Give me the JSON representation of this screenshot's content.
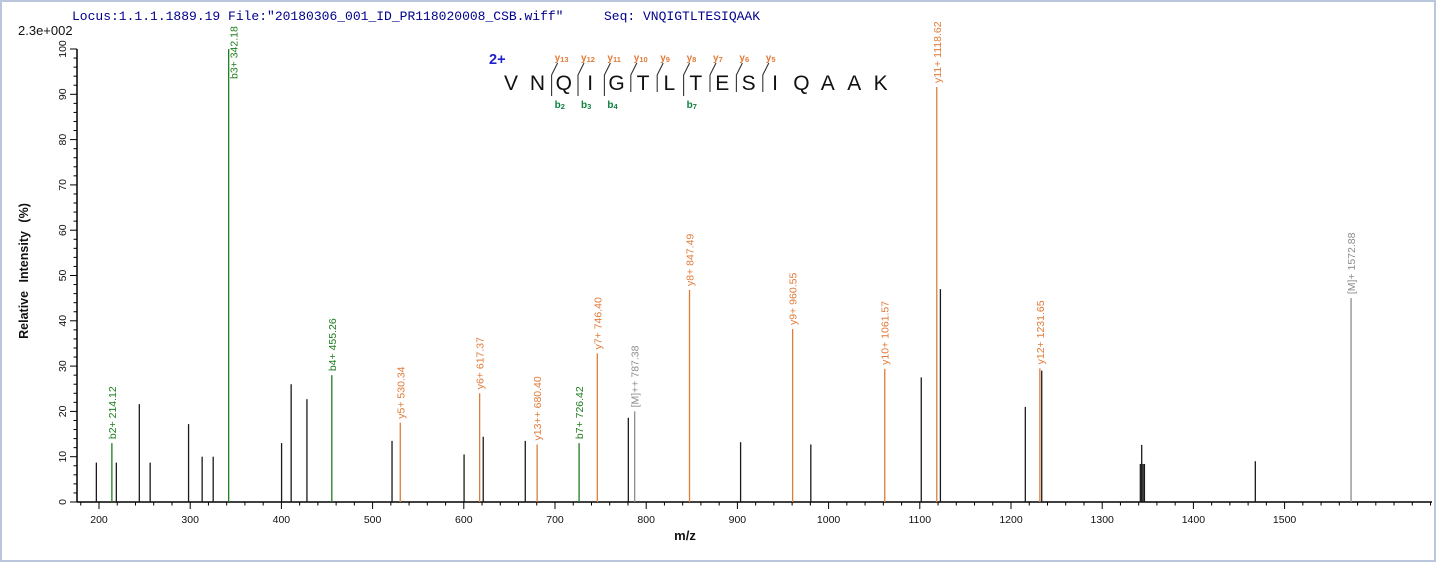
{
  "header": {
    "locus_file": "Locus:1.1.1.1889.19 File:\"20180306_001_ID_PR118020008_CSB.wiff\"",
    "seq": "Seq: VNQIGTLTESIQAAK"
  },
  "colors": {
    "b_ion": "#1e7d1e",
    "y_ion": "#e07b39",
    "precursor": "#8c8c8c",
    "peak": "#1a1a1a",
    "header_text": "#00008b",
    "charge_label": "#2020cc",
    "annotation_b": "#0e8040",
    "annotation_mark": "#333333"
  },
  "peptide": {
    "charge_label": "2+",
    "residues": [
      "V",
      "N",
      "Q",
      "I",
      "G",
      "T",
      "L",
      "T",
      "E",
      "S",
      "I",
      "Q",
      "A",
      "A",
      "K"
    ],
    "marks": [
      {
        "gap_after": 1,
        "y_label": "y13",
        "b_label": "b2"
      },
      {
        "gap_after": 2,
        "y_label": "y12",
        "b_label": "b3"
      },
      {
        "gap_after": 3,
        "y_label": "y11",
        "b_label": "b4"
      },
      {
        "gap_after": 4,
        "y_label": "y10"
      },
      {
        "gap_after": 5,
        "y_label": "y9"
      },
      {
        "gap_after": 6,
        "y_label": "y8",
        "b_label": "b7"
      },
      {
        "gap_after": 7,
        "y_label": "y7"
      },
      {
        "gap_after": 8,
        "y_label": "y6"
      },
      {
        "gap_after": 9,
        "y_label": "y5"
      }
    ]
  },
  "chart_data": {
    "type": "bar",
    "title": "",
    "xlabel": "m/z",
    "ylabel": "Relative Intensity (%)",
    "y_scale_note": "2.3e+002",
    "xlim": [
      176,
      1662
    ],
    "ylim": [
      0,
      100
    ],
    "x_major_ticks": [
      200,
      300,
      400,
      500,
      600,
      700,
      800,
      900,
      1000,
      1100,
      1200,
      1300,
      1400,
      1500
    ],
    "x_minor_tick_step": 20,
    "y_major_ticks": [
      0,
      10,
      20,
      30,
      40,
      50,
      60,
      70,
      80,
      90,
      100
    ],
    "y_minor_tick_step": 2,
    "grid": false,
    "legend": "none",
    "peaks": [
      {
        "mz": 197.1,
        "intensity": 8.7
      },
      {
        "mz": 214.12,
        "intensity": 13.0,
        "ion": "b",
        "label": "b2+ 214.12"
      },
      {
        "mz": 219.0,
        "intensity": 8.7
      },
      {
        "mz": 244.2,
        "intensity": 21.6
      },
      {
        "mz": 256.1,
        "intensity": 8.7
      },
      {
        "mz": 298.2,
        "intensity": 17.2
      },
      {
        "mz": 313.1,
        "intensity": 10.0
      },
      {
        "mz": 325.2,
        "intensity": 10.0
      },
      {
        "mz": 342.18,
        "intensity": 100.0,
        "ion": "b",
        "label": "b3+ 342.18",
        "label_dx": 9,
        "label_bottom": 77
      },
      {
        "mz": 400.2,
        "intensity": 13.0
      },
      {
        "mz": 410.7,
        "intensity": 26.0
      },
      {
        "mz": 428.0,
        "intensity": 22.7
      },
      {
        "mz": 455.26,
        "intensity": 28.0,
        "ion": "b",
        "label": "b4+ 455.26"
      },
      {
        "mz": 521.3,
        "intensity": 13.5
      },
      {
        "mz": 530.34,
        "intensity": 17.5,
        "ion": "y",
        "label": "y5+ 530.34"
      },
      {
        "mz": 600.3,
        "intensity": 10.5
      },
      {
        "mz": 617.37,
        "intensity": 24.0,
        "ion": "y",
        "label": "y6+ 617.37"
      },
      {
        "mz": 621.3,
        "intensity": 14.4
      },
      {
        "mz": 667.4,
        "intensity": 13.5
      },
      {
        "mz": 680.4,
        "intensity": 12.7,
        "ion": "y",
        "label": "y13++ 680.40"
      },
      {
        "mz": 726.42,
        "intensity": 13.0,
        "ion": "b",
        "label": "b7+ 726.42"
      },
      {
        "mz": 746.4,
        "intensity": 32.8,
        "ion": "y",
        "label": "y7+ 746.40"
      },
      {
        "mz": 780.4,
        "intensity": 18.6
      },
      {
        "mz": 787.38,
        "intensity": 20.0,
        "ion": "M",
        "label": "[M]++ 787.38"
      },
      {
        "mz": 847.49,
        "intensity": 46.8,
        "ion": "y",
        "label": "y8+ 847.49"
      },
      {
        "mz": 903.5,
        "intensity": 13.2
      },
      {
        "mz": 960.55,
        "intensity": 38.2,
        "ion": "y",
        "label": "y9+ 960.55"
      },
      {
        "mz": 980.5,
        "intensity": 12.7
      },
      {
        "mz": 1061.57,
        "intensity": 29.4,
        "ion": "y",
        "label": "y10+ 1061.57"
      },
      {
        "mz": 1101.6,
        "intensity": 27.5
      },
      {
        "mz": 1118.62,
        "intensity": 91.6,
        "ion": "y",
        "label": "y11+ 1118.62"
      },
      {
        "mz": 1122.6,
        "intensity": 47.0
      },
      {
        "mz": 1215.7,
        "intensity": 21.0
      },
      {
        "mz": 1231.65,
        "intensity": 29.5,
        "ion": "y",
        "label": "y12+ 1231.65"
      },
      {
        "mz": 1233.7,
        "intensity": 29.0
      },
      {
        "mz": 1341.8,
        "intensity": 8.4
      },
      {
        "mz": 1343.3,
        "intensity": 12.6
      },
      {
        "mz": 1344.8,
        "intensity": 8.4
      },
      {
        "mz": 1346.3,
        "intensity": 8.4
      },
      {
        "mz": 1467.9,
        "intensity": 9.0
      },
      {
        "mz": 1572.88,
        "intensity": 45.0,
        "ion": "M",
        "label": "[M]+ 1572.88"
      }
    ]
  }
}
